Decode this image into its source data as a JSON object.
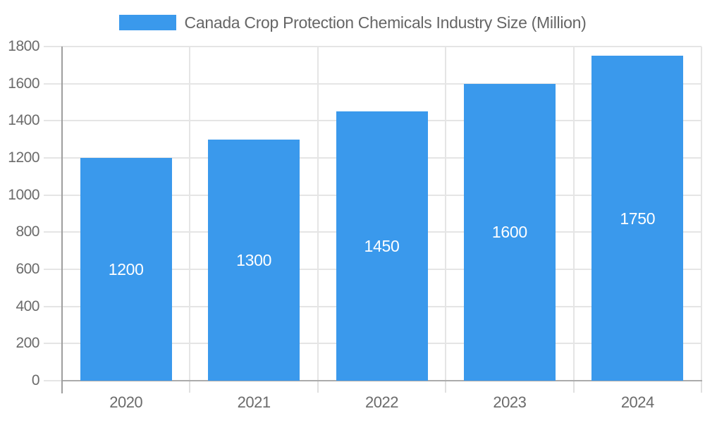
{
  "chart_data": {
    "type": "bar",
    "title": "Canada Crop Protection Chemicals Industry Size (Million)",
    "legend_position": "top",
    "categories": [
      "2020",
      "2021",
      "2022",
      "2023",
      "2024"
    ],
    "series": [
      {
        "name": "Canada Crop Protection Chemicals Industry Size (Million)",
        "values": [
          1200,
          1300,
          1450,
          1600,
          1750
        ],
        "color": "#3A99EC"
      }
    ],
    "data_labels": [
      "1200",
      "1300",
      "1450",
      "1600",
      "1750"
    ],
    "xlabel": "",
    "ylabel": "",
    "ylim": [
      0,
      1800
    ],
    "yticks": [
      0,
      200,
      400,
      600,
      800,
      1000,
      1200,
      1400,
      1600,
      1800
    ],
    "grid": true
  },
  "colors": {
    "bar": "#3A99EC",
    "data_label_text": "#FFFFFF",
    "gridline": "#E5E5E5",
    "axis_line": "#9E9E9E",
    "tick_text": "#6B6B6B",
    "legend_text": "#666666",
    "background": "#FFFFFF"
  }
}
